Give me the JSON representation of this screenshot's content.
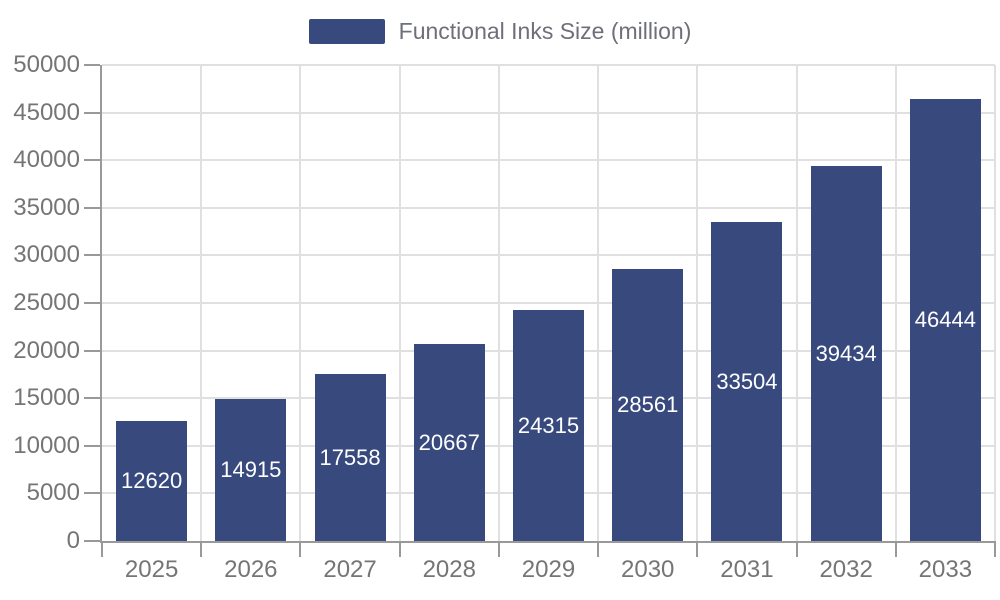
{
  "legend": {
    "label": "Functional Inks Size (million)"
  },
  "chart_data": {
    "type": "bar",
    "title": "",
    "xlabel": "",
    "ylabel": "",
    "categories": [
      "2025",
      "2026",
      "2027",
      "2028",
      "2029",
      "2030",
      "2031",
      "2032",
      "2033"
    ],
    "series": [
      {
        "name": "Functional Inks Size (million)",
        "values": [
          12620,
          14915,
          17558,
          20667,
          24315,
          28561,
          33504,
          39434,
          46444
        ]
      }
    ],
    "ylim": [
      0,
      50000
    ],
    "ytick_step": 5000,
    "yticks": [
      0,
      5000,
      10000,
      15000,
      20000,
      25000,
      30000,
      35000,
      40000,
      45000,
      50000
    ],
    "grid": true,
    "legend_position": "top",
    "value_labels": "inside-center",
    "colors": {
      "bar": "#38497E",
      "value_label": "#FFFFFF",
      "axis_line": "#999999",
      "gridline": "#E0E0E0",
      "tick_label": "#757575",
      "legend_text": "#6E7079",
      "background": "#FFFFFF"
    }
  }
}
